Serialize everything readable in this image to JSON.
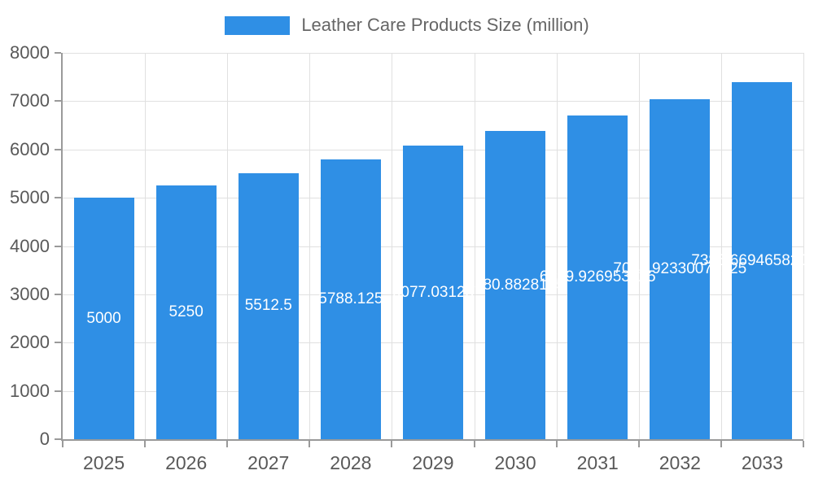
{
  "chart_data": {
    "type": "bar",
    "title": "",
    "legend": "Leather Care Products Size (million)",
    "legend_position": "top",
    "categories": [
      "2025",
      "2026",
      "2027",
      "2028",
      "2029",
      "2030",
      "2031",
      "2032",
      "2033"
    ],
    "values": [
      5000,
      5250,
      5512.5,
      5788.125,
      6077.03125,
      6380.8828125,
      6699.926953125,
      7034.92330078125,
      7386.669465820312
    ],
    "labels": [
      "5000",
      "5250",
      "5512.5",
      "5788.125",
      "6077.03125",
      "6380.8828125",
      "6699.926953125",
      "7034.92330078125",
      "7386.669465820312"
    ],
    "xlabel": "",
    "ylabel": "",
    "ylim": [
      0,
      8000
    ],
    "yticks": [
      0,
      1000,
      2000,
      3000,
      4000,
      5000,
      6000,
      7000,
      8000
    ],
    "grid": true,
    "bar_color": "#2F8FE5",
    "axis_color": "#9a9a9a",
    "grid_color": "#e0e0e0",
    "axis_text_color": "#595959",
    "legend_text_color": "#666666",
    "bar_label_color": "#ffffff"
  }
}
